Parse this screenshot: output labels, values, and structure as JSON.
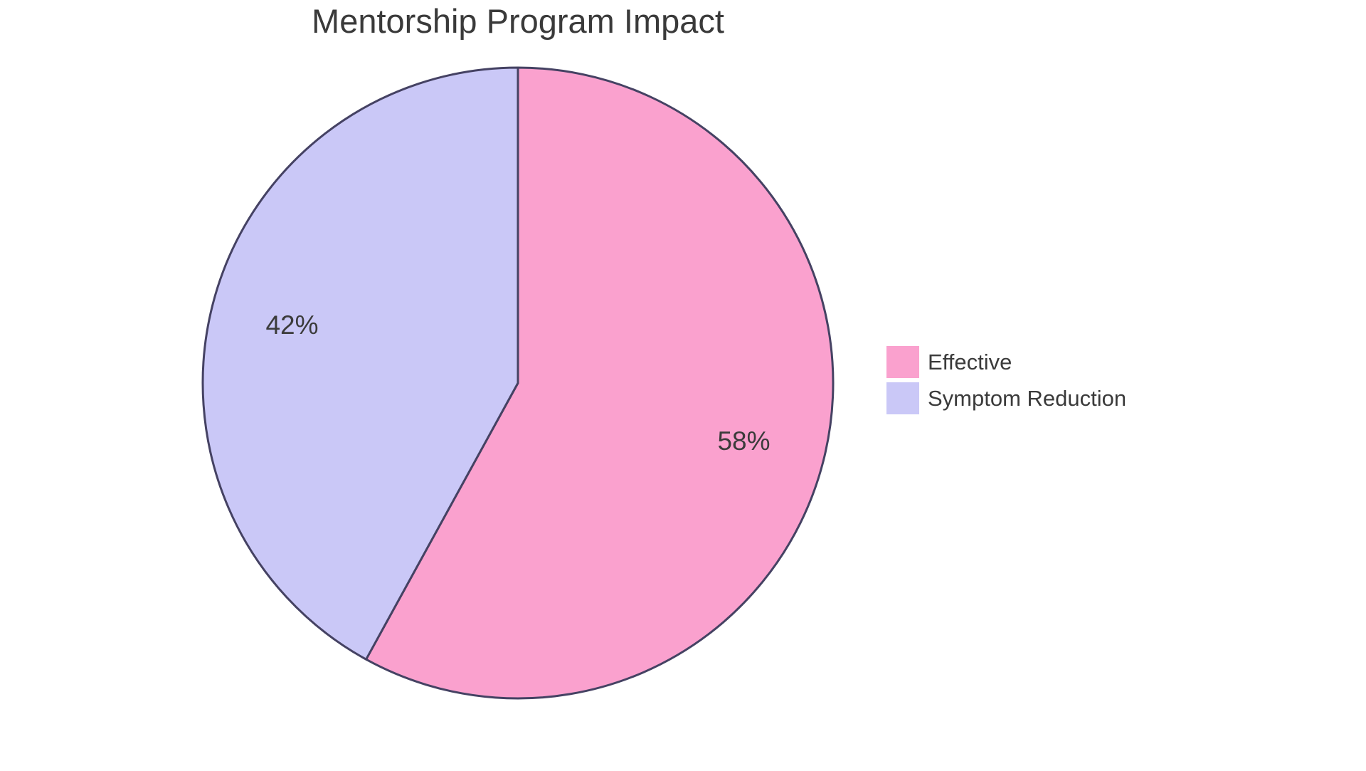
{
  "page": {
    "background_color": "#FFFFFF"
  },
  "chart_data": {
    "type": "pie",
    "title": "Mentorship Program Impact",
    "labels": [
      "Effective",
      "Symptom Reduction"
    ],
    "values": [
      58,
      42
    ],
    "display_labels": [
      "58%",
      "42%"
    ],
    "slice_colors": [
      "#FAA1CE",
      "#CAC8F7"
    ],
    "border_color": "#454263",
    "border_width": 3,
    "slice_label_color": "#3B3B3B",
    "title_color": "#3A3A3A",
    "legend_text_color": "#3B3B3B",
    "legend_position": "right",
    "start_angle_deg": -90,
    "direction": "clockwise",
    "total": 100
  }
}
